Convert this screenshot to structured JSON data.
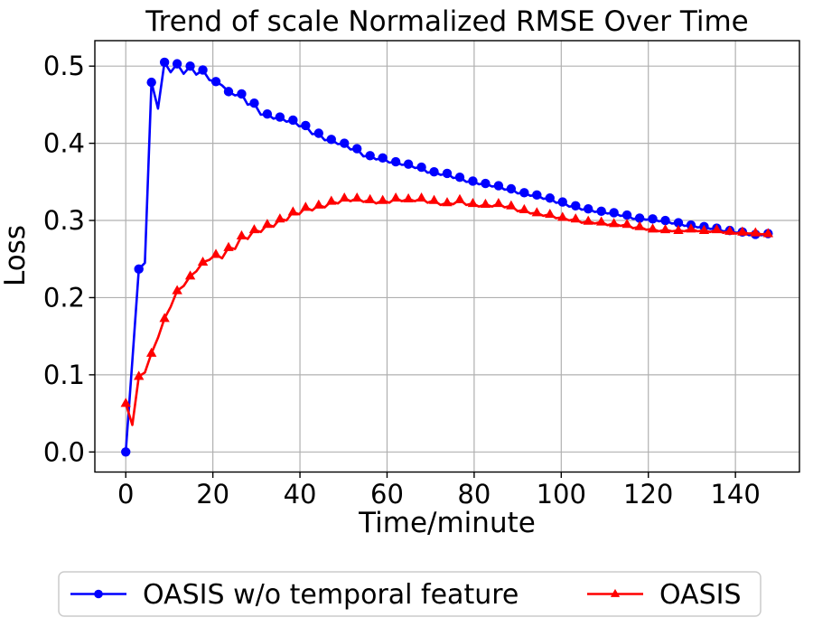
{
  "figure": {
    "background": "#ffffff",
    "grid_color": "#b0b0b0",
    "axis_color": "#000000",
    "text_color": "#000000",
    "legend_border_color": "#cccccc"
  },
  "chart_data": {
    "type": "line",
    "title": "Trend of scale Normalized RMSE Over Time",
    "xlabel": "Time/minute",
    "ylabel": "Loss",
    "grid": true,
    "legend_position": "bottom",
    "xlim": [
      -7.1,
      154.7
    ],
    "ylim": [
      -0.026,
      0.533
    ],
    "x_tick_values": [
      0,
      20,
      40,
      60,
      80,
      100,
      120,
      140
    ],
    "x_tick_labels": [
      "0",
      "20",
      "40",
      "60",
      "80",
      "100",
      "120",
      "140"
    ],
    "y_tick_values": [
      0.0,
      0.1,
      0.2,
      0.3,
      0.4,
      0.5
    ],
    "y_tick_labels": [
      "0.0",
      "0.1",
      "0.2",
      "0.3",
      "0.4",
      "0.5"
    ],
    "marker_every": 2,
    "x": [
      0,
      1.5,
      3,
      4.4,
      5.9,
      7.4,
      8.9,
      10.3,
      11.8,
      13.3,
      14.8,
      16.2,
      17.7,
      19.2,
      20.7,
      22.1,
      23.6,
      25.1,
      26.6,
      28,
      29.5,
      31,
      32.5,
      33.9,
      35.4,
      36.9,
      38.4,
      39.8,
      41.3,
      42.8,
      44.3,
      45.7,
      47.2,
      48.7,
      50.2,
      51.6,
      53.1,
      54.6,
      56.1,
      57.5,
      59,
      60.5,
      62,
      63.4,
      64.9,
      66.4,
      67.9,
      69.3,
      70.8,
      72.3,
      73.8,
      75.2,
      76.7,
      78.2,
      79.7,
      81.1,
      82.6,
      84.1,
      85.6,
      87,
      88.5,
      90,
      91.5,
      92.9,
      94.4,
      95.9,
      97.4,
      98.8,
      100.3,
      101.8,
      103.3,
      104.7,
      106.2,
      107.7,
      109.2,
      110.6,
      112.1,
      113.6,
      115.1,
      116.5,
      118,
      119.5,
      121,
      122.4,
      123.9,
      125.4,
      126.9,
      128.3,
      129.8,
      131.3,
      132.8,
      134.2,
      135.7,
      137.2,
      138.7,
      140.1,
      141.6,
      143.1,
      144.6,
      146,
      147.5
    ],
    "series": [
      {
        "name": "OASIS w/o temporal feature",
        "color": "#0000ff",
        "marker": "circle",
        "y": [
          0,
          0.118,
          0.237,
          0.245,
          0.479,
          0.445,
          0.505,
          0.492,
          0.503,
          0.49,
          0.5,
          0.489,
          0.495,
          0.482,
          0.48,
          0.475,
          0.467,
          0.462,
          0.464,
          0.45,
          0.452,
          0.437,
          0.438,
          0.432,
          0.434,
          0.428,
          0.43,
          0.422,
          0.423,
          0.412,
          0.413,
          0.404,
          0.405,
          0.399,
          0.4,
          0.392,
          0.393,
          0.383,
          0.384,
          0.379,
          0.381,
          0.375,
          0.376,
          0.372,
          0.373,
          0.368,
          0.369,
          0.362,
          0.363,
          0.359,
          0.361,
          0.355,
          0.356,
          0.35,
          0.351,
          0.347,
          0.348,
          0.344,
          0.345,
          0.34,
          0.341,
          0.335,
          0.336,
          0.332,
          0.333,
          0.328,
          0.329,
          0.323,
          0.324,
          0.318,
          0.319,
          0.314,
          0.315,
          0.311,
          0.312,
          0.309,
          0.31,
          0.306,
          0.307,
          0.302,
          0.303,
          0.301,
          0.302,
          0.299,
          0.3,
          0.296,
          0.297,
          0.293,
          0.294,
          0.291,
          0.292,
          0.289,
          0.29,
          0.286,
          0.287,
          0.284,
          0.285,
          0.281,
          0.282,
          0.281,
          0.283
        ]
      },
      {
        "name": "OASIS",
        "color": "#ff0000",
        "marker": "triangle",
        "y": [
          0.063,
          0.035,
          0.098,
          0.103,
          0.128,
          0.148,
          0.173,
          0.188,
          0.209,
          0.215,
          0.228,
          0.234,
          0.246,
          0.249,
          0.256,
          0.251,
          0.265,
          0.263,
          0.28,
          0.276,
          0.288,
          0.285,
          0.295,
          0.292,
          0.302,
          0.3,
          0.311,
          0.308,
          0.317,
          0.313,
          0.32,
          0.317,
          0.325,
          0.322,
          0.329,
          0.325,
          0.329,
          0.324,
          0.327,
          0.322,
          0.326,
          0.323,
          0.329,
          0.325,
          0.328,
          0.325,
          0.329,
          0.323,
          0.326,
          0.32,
          0.323,
          0.321,
          0.327,
          0.32,
          0.322,
          0.318,
          0.321,
          0.318,
          0.322,
          0.317,
          0.319,
          0.312,
          0.314,
          0.309,
          0.31,
          0.306,
          0.308,
          0.303,
          0.304,
          0.3,
          0.302,
          0.297,
          0.299,
          0.296,
          0.298,
          0.294,
          0.296,
          0.293,
          0.295,
          0.29,
          0.292,
          0.288,
          0.289,
          0.286,
          0.288,
          0.286,
          0.287,
          0.286,
          0.289,
          0.286,
          0.287,
          0.285,
          0.288,
          0.284,
          0.286,
          0.283,
          0.285,
          0.283,
          0.284,
          0.282,
          0.283
        ]
      }
    ]
  }
}
